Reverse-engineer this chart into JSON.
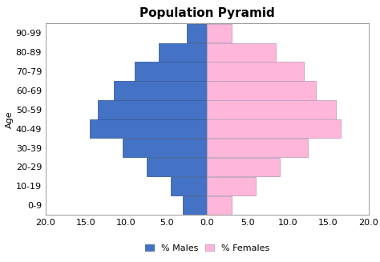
{
  "title": "Population Pyramid",
  "age_groups": [
    "0-9",
    "10-19",
    "20-29",
    "30-39",
    "40-49",
    "50-59",
    "60-69",
    "70-79",
    "80-89",
    "90-99"
  ],
  "males": [
    3.0,
    4.5,
    7.5,
    10.5,
    14.5,
    13.5,
    11.5,
    9.0,
    6.0,
    2.5
  ],
  "females": [
    3.0,
    6.0,
    9.0,
    12.5,
    16.5,
    16.0,
    13.5,
    12.0,
    8.5,
    3.0
  ],
  "male_color": "#4472C4",
  "female_color": "#FFB6D9",
  "male_edge_color": "#3A5FA0",
  "female_edge_color": "#C0A0C0",
  "xlim": [
    -20,
    20
  ],
  "xticks": [
    -20,
    -15,
    -10,
    -5,
    0,
    5,
    10,
    15,
    20
  ],
  "xticklabels": [
    "20.0",
    "15.0",
    "10.0",
    "5.0",
    "0.0",
    "5.0",
    "10.0",
    "15.0",
    "20.0"
  ],
  "ylabel": "Age",
  "bar_height": 0.98,
  "title_fontsize": 11,
  "axis_fontsize": 8,
  "legend_fontsize": 8,
  "background_color": "#FFFFFF"
}
